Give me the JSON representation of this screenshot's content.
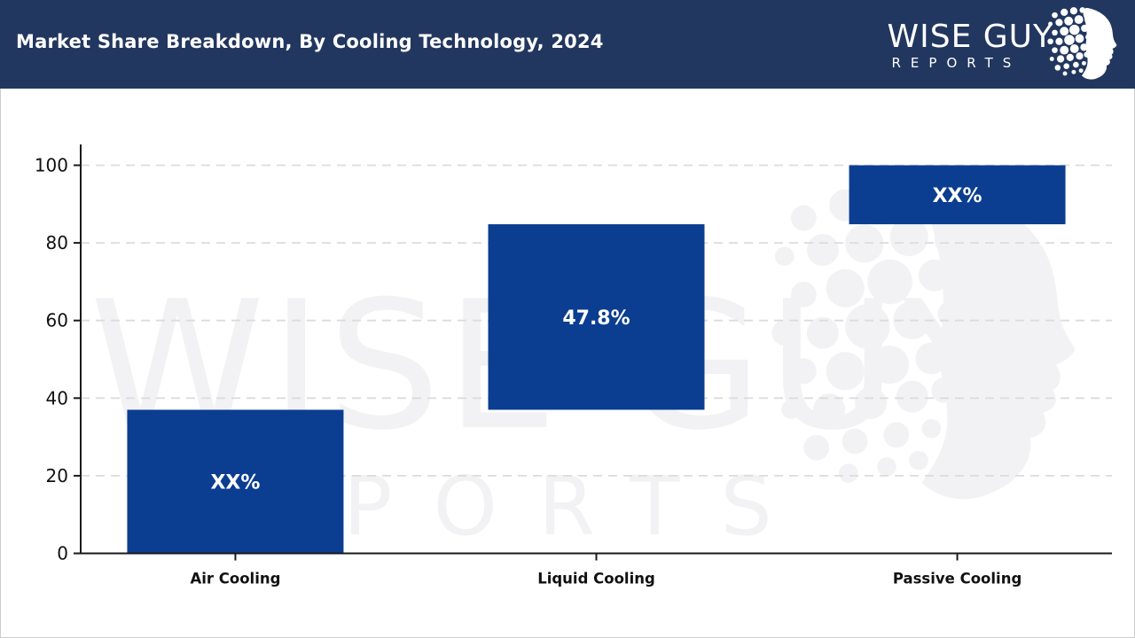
{
  "header": {
    "title": "Market Share Breakdown, By Cooling Technology, 2024",
    "bg_color": "#22375f"
  },
  "logo": {
    "name": "WISE GUY",
    "tagline": "REPORTS",
    "icon": "dotted-head-icon",
    "color": "#ffffff"
  },
  "watermark": {
    "line1": "WISE GUY",
    "line2": "REPORTS",
    "icon": "dotted-head-icon",
    "color": "#f2f2f4"
  },
  "chart_data": {
    "type": "bar",
    "variant": "waterfall",
    "title": "Market Share Breakdown, By Cooling Technology, 2024",
    "categories": [
      "Air Cooling",
      "Liquid Cooling",
      "Passive Cooling"
    ],
    "series": [
      {
        "name": "Market Share (%)",
        "segments": [
          {
            "category": "Air Cooling",
            "start": 0,
            "end": 37,
            "label": "XX%"
          },
          {
            "category": "Liquid Cooling",
            "start": 37,
            "end": 84.8,
            "label": "47.8%"
          },
          {
            "category": "Passive Cooling",
            "start": 84.8,
            "end": 100,
            "label": "XX%"
          }
        ]
      }
    ],
    "xlabel": "",
    "ylabel": "",
    "yticks": [
      "0",
      "20",
      "40",
      "60",
      "80",
      "100"
    ],
    "ylim": [
      0,
      105
    ],
    "grid": "dashed-horizontal",
    "legend": "none",
    "bar_color": "#0b3d91",
    "bar_label_color": "#ffffff",
    "grid_color": "#dcdcdc",
    "axis_color": "#1a1a1a",
    "tick_label_color": "#111111"
  }
}
